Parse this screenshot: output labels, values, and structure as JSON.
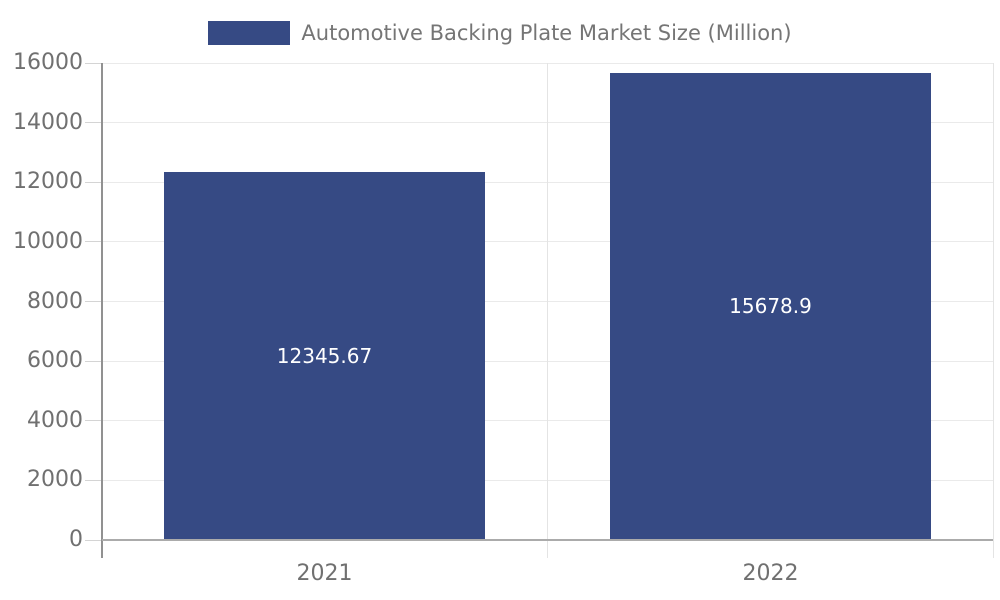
{
  "chart_data": {
    "type": "bar",
    "title": "Automotive Backing Plate Market Size (Million)",
    "categories": [
      "2021",
      "2022"
    ],
    "values": [
      12345.67,
      15678.9
    ],
    "value_labels": [
      "12345.67",
      "15678.9"
    ],
    "xlabel": "",
    "ylabel": "",
    "ylim": [
      0,
      16000
    ],
    "ytick_interval": 2000,
    "ytick_labels": [
      "0",
      "2000",
      "4000",
      "6000",
      "8000",
      "10000",
      "12000",
      "14000",
      "16000"
    ],
    "grid": true,
    "legend": {
      "position": "top-center",
      "entries": [
        "Automotive Backing Plate Market Size (Million)"
      ]
    },
    "colors": {
      "bar": "#364A84",
      "bar_label": "#FFFFFF",
      "axis_text": "#707070",
      "title_text": "#757575",
      "grid_line": "#EAEAEA",
      "tick_line": "#D4D4D4",
      "y_axis_line": "#919191",
      "x_axis_line": "#ABABAB",
      "split_line": "#E4E4E4"
    }
  }
}
